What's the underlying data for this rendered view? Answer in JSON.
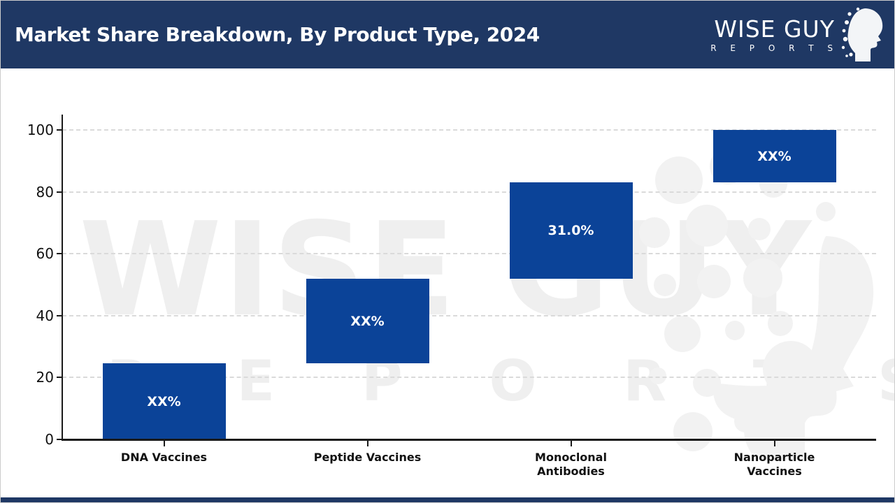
{
  "header": {
    "title": "Market Share Breakdown, By Product Type, 2024",
    "logo": {
      "name": "WISE GUY",
      "sub": "R E P O R T S"
    }
  },
  "watermark": {
    "line1": "WISE GUY",
    "line2": "R E P O R T S"
  },
  "chart_data": {
    "type": "bar",
    "variant": "floating-segment waterfall bars (market share breakdown)",
    "title": "Market Share Breakdown, By Product Type, 2024",
    "categories": [
      "DNA Vaccines",
      "Peptide Vaccines",
      "Monoclonal\nAntibodies",
      "Nanoparticle\nVaccines"
    ],
    "segments": [
      {
        "category": "DNA Vaccines",
        "start": 0,
        "end": 24.5,
        "value": 24.5,
        "value_label": "XX%"
      },
      {
        "category": "Peptide Vaccines",
        "start": 24.5,
        "end": 52,
        "value": 27.5,
        "value_label": "XX%"
      },
      {
        "category": "Monoclonal Antibodies",
        "start": 52,
        "end": 83,
        "value": 31.0,
        "value_label": "31.0%"
      },
      {
        "category": "Nanoparticle Vaccines",
        "start": 83,
        "end": 100,
        "value": 17.0,
        "value_label": "XX%"
      }
    ],
    "yticks": [
      0,
      20,
      40,
      60,
      80,
      100
    ],
    "ylim": [
      0,
      105
    ],
    "xlabel": "",
    "ylabel": "",
    "grid": {
      "horizontal": true,
      "style": "dashed",
      "color": "#dadada"
    },
    "legend": "none",
    "bar_color": "#0b4398",
    "bar_label_color": "#ffffff"
  },
  "colors": {
    "header_bg": "#1f3864",
    "footer_bg": "#1f3864",
    "background": "#ffffff",
    "axis": "#1a1a1a",
    "tick_label": "#111111",
    "watermark": "#efefef",
    "frame_border": "#cccccc"
  }
}
